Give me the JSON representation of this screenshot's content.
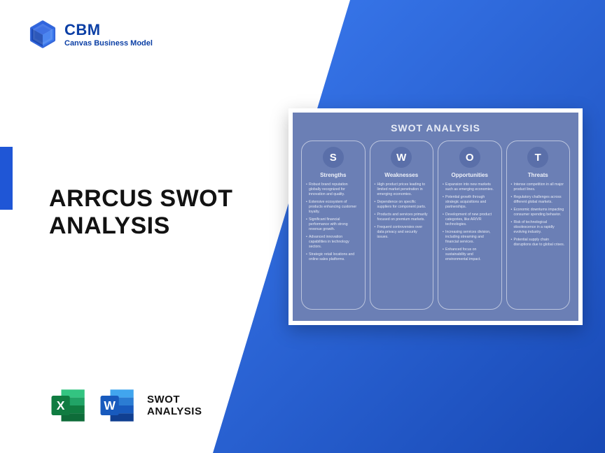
{
  "brand": {
    "name": "CBM",
    "tagline": "Canvas Business Model",
    "logo_color": "#1f56d6"
  },
  "hero": {
    "title_line1": "ARRCUS SWOT",
    "title_line2": "ANALYSIS"
  },
  "accent": {
    "color": "#1f56d6"
  },
  "bg": {
    "grad_start": "#3b7bf0",
    "grad_end": "#1849b5"
  },
  "files": {
    "excel": {
      "letter": "X",
      "bg": "#107c41",
      "accent": "#21a366"
    },
    "word": {
      "letter": "W",
      "bg": "#185abd",
      "accent": "#41a5ee"
    },
    "label_line1": "SWOT",
    "label_line2": "ANALYSIS"
  },
  "swot": {
    "card_bg": "#6b7fb5",
    "title": "SWOT ANALYSIS",
    "columns": [
      {
        "letter": "S",
        "heading": "Strengths",
        "circle_color": "#5a6fa9",
        "items": [
          "Robust brand reputation globally recognized for innovation and quality.",
          "Extensive ecosystem of products enhancing customer loyalty.",
          "Significant financial performance with strong revenue growth.",
          "Advanced innovation capabilities in technology sectors.",
          "Strategic retail locations and online sales platforms."
        ]
      },
      {
        "letter": "W",
        "heading": "Weaknesses",
        "circle_color": "#5a6fa9",
        "items": [
          "High product prices leading to limited market penetration in emerging economies.",
          "Dependence on specific suppliers for component parts.",
          "Products and services primarily focused on premium markets.",
          "Frequent controversies over data privacy and security issues."
        ]
      },
      {
        "letter": "O",
        "heading": "Opportunities",
        "circle_color": "#5a6fa9",
        "items": [
          "Expansion into new markets such as emerging economies.",
          "Potential growth through strategic acquisitions and partnerships.",
          "Development of new product categories, like AR/VR technologies.",
          "Increasing services division, including streaming and financial services.",
          "Enhanced focus on sustainability and environmental impact."
        ]
      },
      {
        "letter": "T",
        "heading": "Threats",
        "circle_color": "#5a6fa9",
        "items": [
          "Intense competition in all major product lines.",
          "Regulatory challenges across different global markets.",
          "Economic downturns impacting consumer spending behavior.",
          "Risk of technological obsolescence in a rapidly evolving industry.",
          "Potential supply chain disruptions due to global crises."
        ]
      }
    ]
  }
}
